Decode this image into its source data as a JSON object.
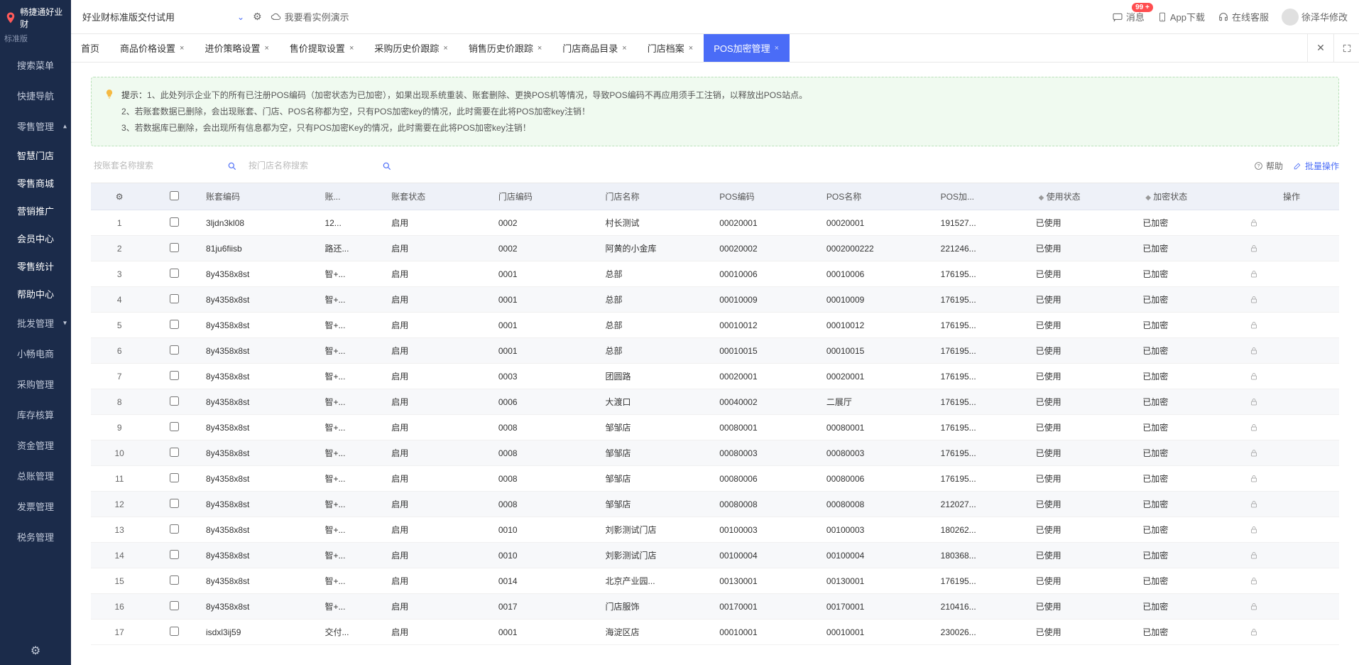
{
  "brand": {
    "name": "畅捷通好业财",
    "edition": "标准版"
  },
  "topbar": {
    "account": "好业财标准版交付试用",
    "demo": "我要看实例演示",
    "actions": {
      "message": "消息",
      "badge": "99 +",
      "download": "App下载",
      "service": "在线客服",
      "user": "徐泽华修改"
    }
  },
  "sidebar": {
    "items": [
      {
        "label": "搜索菜单",
        "caret": false
      },
      {
        "label": "快捷导航",
        "caret": false
      },
      {
        "label": "零售管理",
        "caret": true,
        "expanded": true
      },
      {
        "label": "智慧门店",
        "sub": true
      },
      {
        "label": "零售商城",
        "sub": true
      },
      {
        "label": "营销推广",
        "sub": true
      },
      {
        "label": "会员中心",
        "sub": true
      },
      {
        "label": "零售统计",
        "sub": true
      },
      {
        "label": "帮助中心",
        "sub": true
      },
      {
        "label": "批发管理",
        "caret": true
      },
      {
        "label": "小畅电商",
        "caret": false
      },
      {
        "label": "采购管理",
        "caret": false
      },
      {
        "label": "库存核算",
        "caret": false
      },
      {
        "label": "资金管理",
        "caret": false
      },
      {
        "label": "总账管理",
        "caret": false
      },
      {
        "label": "发票管理",
        "caret": false
      },
      {
        "label": "税务管理",
        "caret": false
      }
    ]
  },
  "tabs": {
    "items": [
      {
        "label": "首页",
        "closable": false
      },
      {
        "label": "商品价格设置",
        "closable": true
      },
      {
        "label": "进价策略设置",
        "closable": true
      },
      {
        "label": "售价提取设置",
        "closable": true
      },
      {
        "label": "采购历史价跟踪",
        "closable": true
      },
      {
        "label": "销售历史价跟踪",
        "closable": true
      },
      {
        "label": "门店商品目录",
        "closable": true
      },
      {
        "label": "门店档案",
        "closable": true
      },
      {
        "label": "POS加密管理",
        "closable": true,
        "active": true
      }
    ]
  },
  "hint": {
    "label": "提示：",
    "lines": [
      "1、此处列示企业下的所有已注册POS编码（加密状态为已加密），如果出现系统重装、账套删除、更换POS机等情况，导致POS编码不再应用须手工注销，以释放出POS站点。",
      "2、若账套数据已删除，会出现账套、门店、POS名称都为空，只有POS加密key的情况，此时需要在此将POS加密key注销！",
      "3、若数据库已删除，会出现所有信息都为空，只有POS加密Key的情况，此时需要在此将POS加密key注销！"
    ]
  },
  "search": {
    "placeholder_account": "按账套名称搜索",
    "placeholder_store": "按门店名称搜索"
  },
  "toolbar": {
    "help": "帮助",
    "batch": "批量操作"
  },
  "table": {
    "columns": [
      "账套编码",
      "账...",
      "账套状态",
      "门店编码",
      "门店名称",
      "POS编码",
      "POS名称",
      "POS加...",
      "使用状态",
      "加密状态",
      "操作"
    ],
    "rows": [
      {
        "idx": 1,
        "acct": "3ljdn3kl08",
        "acctname": "12...",
        "status": "启用",
        "storecode": "0002",
        "storename": "村长测试",
        "poscode": "00020001",
        "posname": "00020001",
        "poskey": "191527...",
        "use": "已使用",
        "enc": "已加密"
      },
      {
        "idx": 2,
        "acct": "81ju6fiisb",
        "acctname": "路还...",
        "status": "启用",
        "storecode": "0002",
        "storename": "阿黄的小金库",
        "poscode": "00020002",
        "posname": "0002000222",
        "poskey": "221246...",
        "use": "已使用",
        "enc": "已加密"
      },
      {
        "idx": 3,
        "acct": "8y4358x8st",
        "acctname": "智+...",
        "status": "启用",
        "storecode": "0001",
        "storename": "总部",
        "poscode": "00010006",
        "posname": "00010006",
        "poskey": "176195...",
        "use": "已使用",
        "enc": "已加密"
      },
      {
        "idx": 4,
        "acct": "8y4358x8st",
        "acctname": "智+...",
        "status": "启用",
        "storecode": "0001",
        "storename": "总部",
        "poscode": "00010009",
        "posname": "00010009",
        "poskey": "176195...",
        "use": "已使用",
        "enc": "已加密"
      },
      {
        "idx": 5,
        "acct": "8y4358x8st",
        "acctname": "智+...",
        "status": "启用",
        "storecode": "0001",
        "storename": "总部",
        "poscode": "00010012",
        "posname": "00010012",
        "poskey": "176195...",
        "use": "已使用",
        "enc": "已加密"
      },
      {
        "idx": 6,
        "acct": "8y4358x8st",
        "acctname": "智+...",
        "status": "启用",
        "storecode": "0001",
        "storename": "总部",
        "poscode": "00010015",
        "posname": "00010015",
        "poskey": "176195...",
        "use": "已使用",
        "enc": "已加密"
      },
      {
        "idx": 7,
        "acct": "8y4358x8st",
        "acctname": "智+...",
        "status": "启用",
        "storecode": "0003",
        "storename": "团圆路",
        "poscode": "00020001",
        "posname": "00020001",
        "poskey": "176195...",
        "use": "已使用",
        "enc": "已加密"
      },
      {
        "idx": 8,
        "acct": "8y4358x8st",
        "acctname": "智+...",
        "status": "启用",
        "storecode": "0006",
        "storename": "大渡口",
        "poscode": "00040002",
        "posname": "二展厅",
        "poskey": "176195...",
        "use": "已使用",
        "enc": "已加密"
      },
      {
        "idx": 9,
        "acct": "8y4358x8st",
        "acctname": "智+...",
        "status": "启用",
        "storecode": "0008",
        "storename": "邹邹店",
        "poscode": "00080001",
        "posname": "00080001",
        "poskey": "176195...",
        "use": "已使用",
        "enc": "已加密"
      },
      {
        "idx": 10,
        "acct": "8y4358x8st",
        "acctname": "智+...",
        "status": "启用",
        "storecode": "0008",
        "storename": "邹邹店",
        "poscode": "00080003",
        "posname": "00080003",
        "poskey": "176195...",
        "use": "已使用",
        "enc": "已加密"
      },
      {
        "idx": 11,
        "acct": "8y4358x8st",
        "acctname": "智+...",
        "status": "启用",
        "storecode": "0008",
        "storename": "邹邹店",
        "poscode": "00080006",
        "posname": "00080006",
        "poskey": "176195...",
        "use": "已使用",
        "enc": "已加密"
      },
      {
        "idx": 12,
        "acct": "8y4358x8st",
        "acctname": "智+...",
        "status": "启用",
        "storecode": "0008",
        "storename": "邹邹店",
        "poscode": "00080008",
        "posname": "00080008",
        "poskey": "212027...",
        "use": "已使用",
        "enc": "已加密"
      },
      {
        "idx": 13,
        "acct": "8y4358x8st",
        "acctname": "智+...",
        "status": "启用",
        "storecode": "0010",
        "storename": "刘影测试门店",
        "poscode": "00100003",
        "posname": "00100003",
        "poskey": "180262...",
        "use": "已使用",
        "enc": "已加密"
      },
      {
        "idx": 14,
        "acct": "8y4358x8st",
        "acctname": "智+...",
        "status": "启用",
        "storecode": "0010",
        "storename": "刘影测试门店",
        "poscode": "00100004",
        "posname": "00100004",
        "poskey": "180368...",
        "use": "已使用",
        "enc": "已加密"
      },
      {
        "idx": 15,
        "acct": "8y4358x8st",
        "acctname": "智+...",
        "status": "启用",
        "storecode": "0014",
        "storename": "北京产业园...",
        "poscode": "00130001",
        "posname": "00130001",
        "poskey": "176195...",
        "use": "已使用",
        "enc": "已加密"
      },
      {
        "idx": 16,
        "acct": "8y4358x8st",
        "acctname": "智+...",
        "status": "启用",
        "storecode": "0017",
        "storename": "门店服饰",
        "poscode": "00170001",
        "posname": "00170001",
        "poskey": "210416...",
        "use": "已使用",
        "enc": "已加密"
      },
      {
        "idx": 17,
        "acct": "isdxl3ij59",
        "acctname": "交付...",
        "status": "启用",
        "storecode": "0001",
        "storename": "海淀区店",
        "poscode": "00010001",
        "posname": "00010001",
        "poskey": "230026...",
        "use": "已使用",
        "enc": "已加密"
      }
    ]
  }
}
